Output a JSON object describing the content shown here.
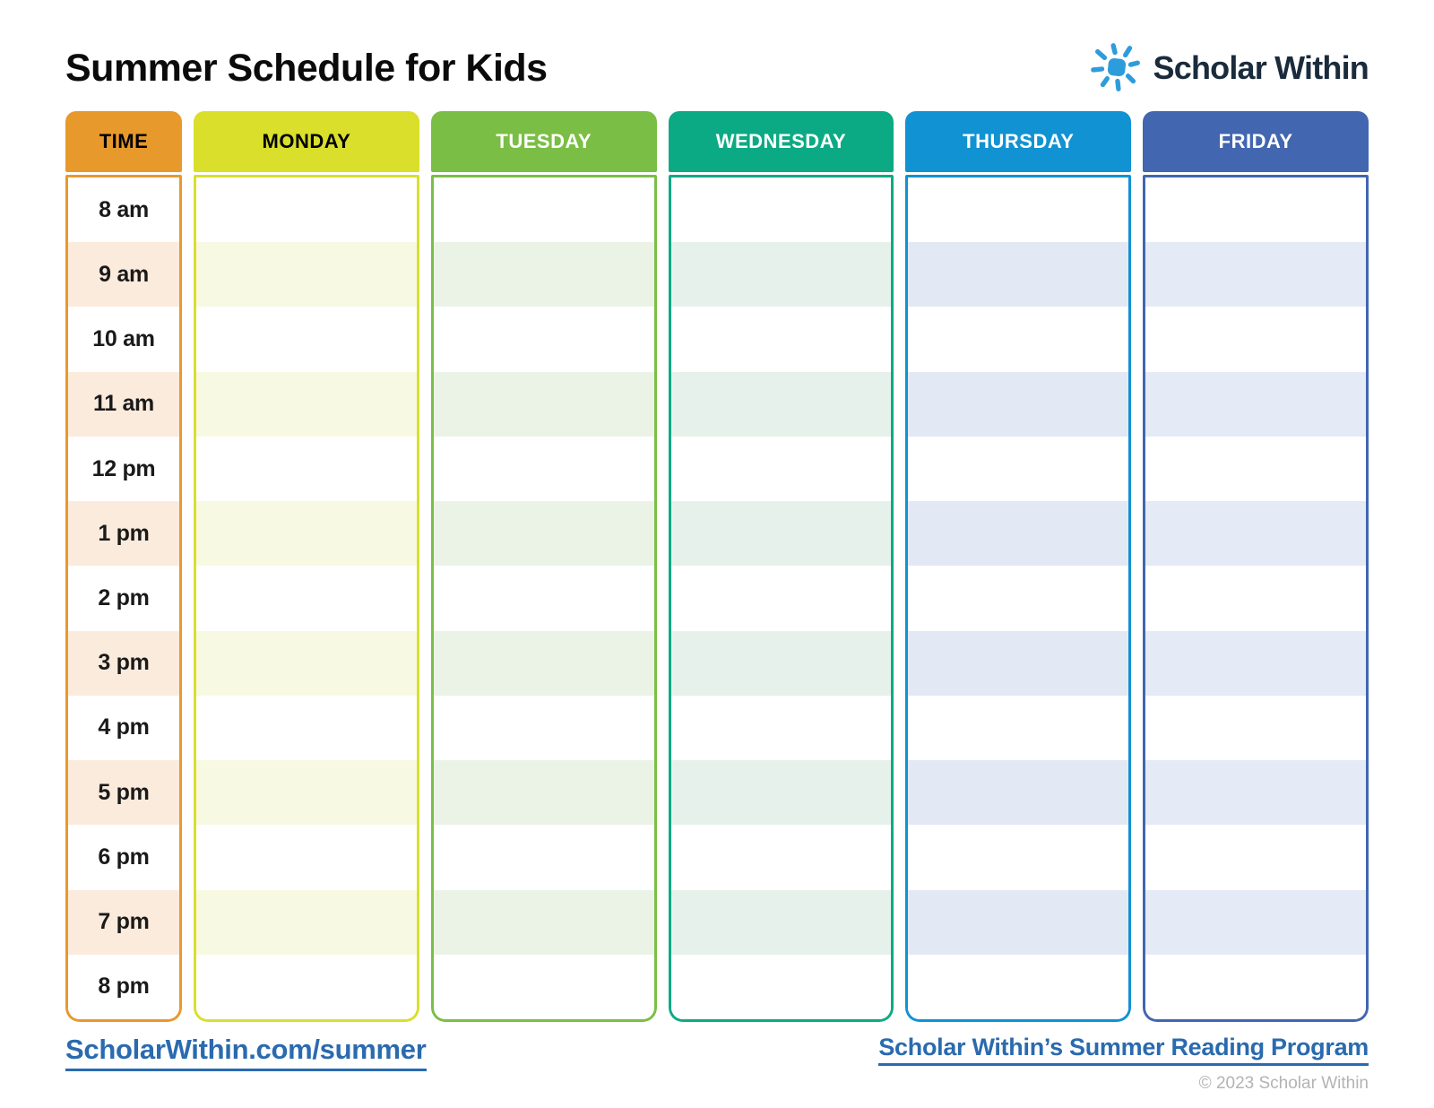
{
  "header": {
    "title": "Summer Schedule for Kids",
    "brand": "Scholar Within"
  },
  "schedule": {
    "time_column": {
      "header": "TIME",
      "color": "#E8992C",
      "stripe": "#FBEBDC",
      "header_text": "#000000",
      "times": [
        "8 am",
        "9 am",
        "10 am",
        "11 am",
        "12 pm",
        "1 pm",
        "2 pm",
        "3 pm",
        "4 pm",
        "5 pm",
        "6 pm",
        "7 pm",
        "8 pm"
      ]
    },
    "days": [
      {
        "label": "MONDAY",
        "color": "#D9DF2B",
        "stripe": "#F8F9E2",
        "header_text": "#000000"
      },
      {
        "label": "TUESDAY",
        "color": "#7BBE45",
        "stripe": "#EBF3E7",
        "header_text": "#FFFFFF"
      },
      {
        "label": "WEDNESDAY",
        "color": "#0CAA84",
        "stripe": "#E7F1EB",
        "header_text": "#FFFFFF"
      },
      {
        "label": "THURSDAY",
        "color": "#1192D2",
        "stripe": "#E2E9F4",
        "header_text": "#FFFFFF"
      },
      {
        "label": "FRIDAY",
        "color": "#4266B0",
        "stripe": "#E4EAF6",
        "header_text": "#FFFFFF"
      }
    ]
  },
  "footer": {
    "left_link": "ScholarWithin.com/summer",
    "right_link": "Scholar Within’s Summer Reading Program",
    "copyright": "© 2023 Scholar Within"
  },
  "colors": {
    "link": "#2A6AAF",
    "brand_text": "#1A2B3C",
    "sun": "#2D9CDB",
    "copyright": "#B3B3B3"
  }
}
